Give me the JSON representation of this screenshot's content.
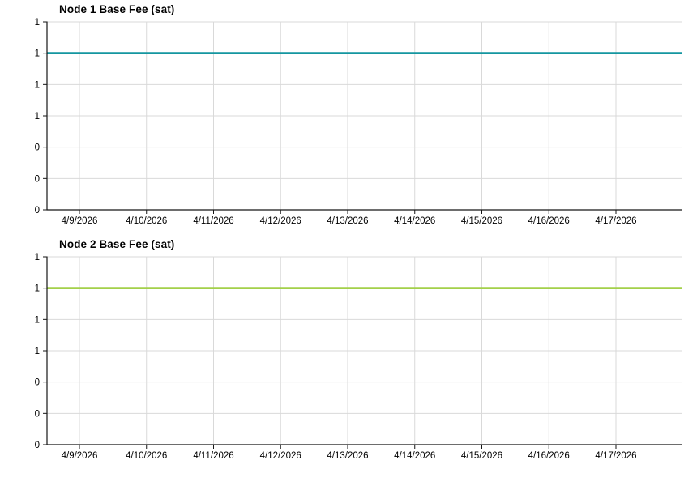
{
  "chart_data": [
    {
      "type": "line",
      "title": "Node 1 Base Fee (sat)",
      "x": [
        "4/9/2026",
        "4/10/2026",
        "4/11/2026",
        "4/12/2026",
        "4/13/2026",
        "4/14/2026",
        "4/15/2026",
        "4/16/2026",
        "4/17/2026"
      ],
      "values": [
        1,
        1,
        1,
        1,
        1,
        1,
        1,
        1,
        1
      ],
      "xlabel": "",
      "ylabel": "",
      "ylim": [
        0,
        1.2
      ],
      "y_ticks": [
        1.2,
        1.0,
        0.8,
        0.6,
        0.4,
        0.2,
        0
      ],
      "y_tick_display": [
        "1",
        "1",
        "1",
        "1",
        "0",
        "0",
        "0"
      ],
      "line_color": "#1496A0",
      "grid": true,
      "legend": "none"
    },
    {
      "type": "line",
      "title": "Node 2 Base Fee (sat)",
      "x": [
        "4/9/2026",
        "4/10/2026",
        "4/11/2026",
        "4/12/2026",
        "4/13/2026",
        "4/14/2026",
        "4/15/2026",
        "4/16/2026",
        "4/17/2026"
      ],
      "values": [
        1,
        1,
        1,
        1,
        1,
        1,
        1,
        1,
        1
      ],
      "xlabel": "",
      "ylabel": "",
      "ylim": [
        0,
        1.2
      ],
      "y_ticks": [
        1.2,
        1.0,
        0.8,
        0.6,
        0.4,
        0.2,
        0
      ],
      "y_tick_display": [
        "1",
        "1",
        "1",
        "1",
        "0",
        "0",
        "0"
      ],
      "line_color": "#A3D04A",
      "grid": true,
      "legend": "none"
    }
  ]
}
